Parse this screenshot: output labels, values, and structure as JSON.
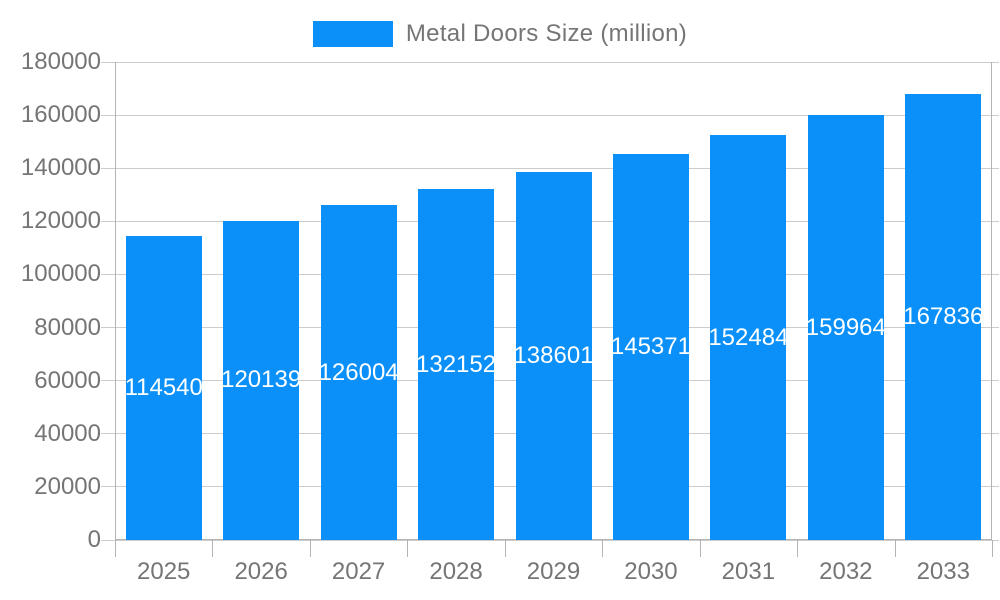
{
  "legend": {
    "label": "Metal Doors Size (million)",
    "swatch_color": "#0a90f8"
  },
  "chart_data": {
    "type": "bar",
    "title": "Metal Doors Size (million)",
    "categories": [
      "2025",
      "2026",
      "2027",
      "2028",
      "2029",
      "2030",
      "2031",
      "2032",
      "2033"
    ],
    "series": [
      {
        "name": "Metal Doors Size (million)",
        "values": [
          114540,
          120139,
          126004,
          132152,
          138601,
          145371,
          152484,
          159964,
          167836
        ]
      }
    ],
    "value_labels": [
      "114540",
      "120139",
      "126004",
      "132152",
      "138601",
      "145371",
      "152484",
      "159964",
      "167836"
    ],
    "xlabel": "",
    "ylabel": "",
    "ylim": [
      0,
      180000
    ],
    "yticks": [
      0,
      20000,
      40000,
      60000,
      80000,
      100000,
      120000,
      140000,
      160000,
      180000
    ],
    "grid": true,
    "legend_position": "top",
    "colors": {
      "bar": "#0a90f8",
      "value_label_text": "#ffffff",
      "axis_text": "#757575",
      "gridline": "#cccccc",
      "axis_line": "#b3b3b3"
    }
  }
}
